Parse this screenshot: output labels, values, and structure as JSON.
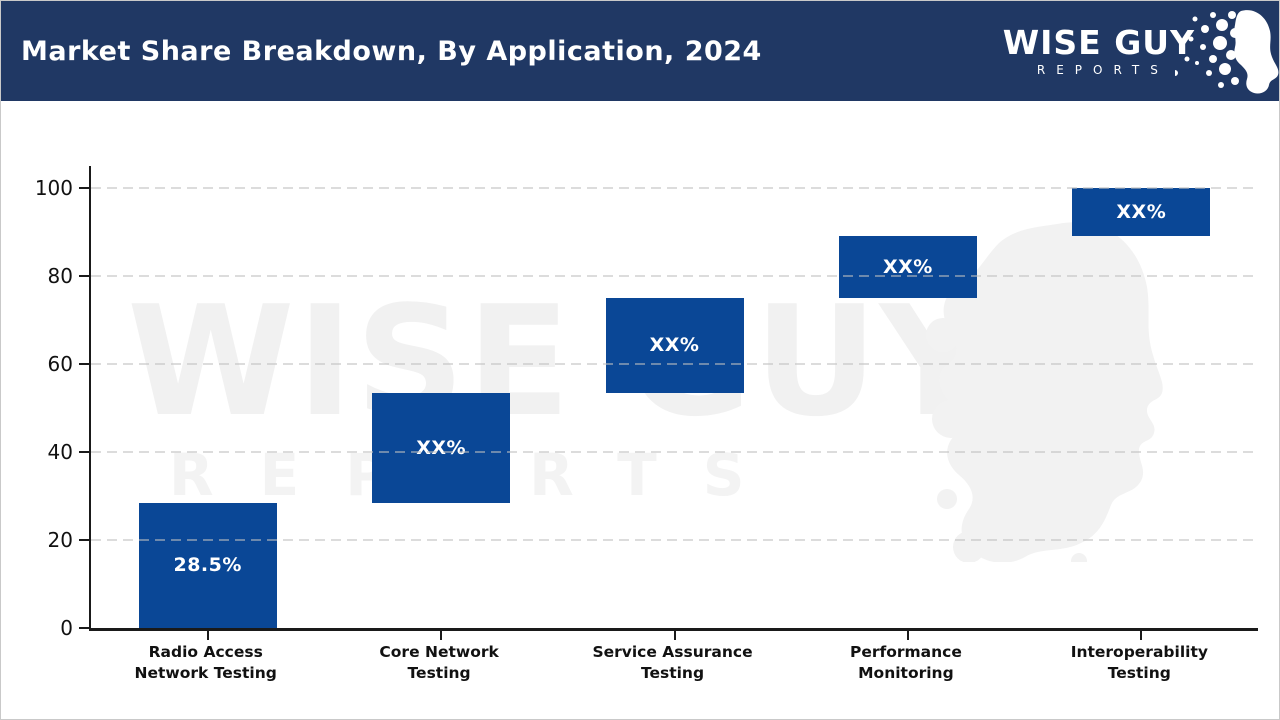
{
  "header": {
    "title": "Market Share Breakdown, By Application, 2024",
    "logo": {
      "line1": "WISE GUY",
      "line2": "REPORTS"
    }
  },
  "watermark": {
    "line1": "WISE GUY",
    "line2": "REPORTS"
  },
  "colors": {
    "header_bg": "#203864",
    "bar": "#0a4796",
    "bar_label": "#ffffff",
    "axis": "#1a1a1a",
    "grid": "#dcdcdc",
    "watermark": "#f2f2f2"
  },
  "chart_data": {
    "type": "bar",
    "subtype": "waterfall",
    "title": "Market Share Breakdown, By Application, 2024",
    "xlabel": "",
    "ylabel": "",
    "ylim": [
      0,
      105
    ],
    "yticks": [
      0,
      20,
      40,
      60,
      80,
      100
    ],
    "grid": "horizontal-dashed",
    "legend": "none",
    "categories": [
      [
        "Radio Access",
        "Network Testing"
      ],
      [
        "Core Network",
        "Testing"
      ],
      [
        "Service Assurance",
        "Testing"
      ],
      [
        "Performance",
        "Monitoring"
      ],
      [
        "Interoperability",
        "Testing"
      ]
    ],
    "segments": [
      {
        "start": 0,
        "end": 28.5,
        "label": "28.5%"
      },
      {
        "start": 28.5,
        "end": 53.5,
        "label": "XX%"
      },
      {
        "start": 53.5,
        "end": 75,
        "label": "XX%"
      },
      {
        "start": 75,
        "end": 89,
        "label": "XX%"
      },
      {
        "start": 89,
        "end": 100,
        "label": "XX%"
      }
    ]
  }
}
